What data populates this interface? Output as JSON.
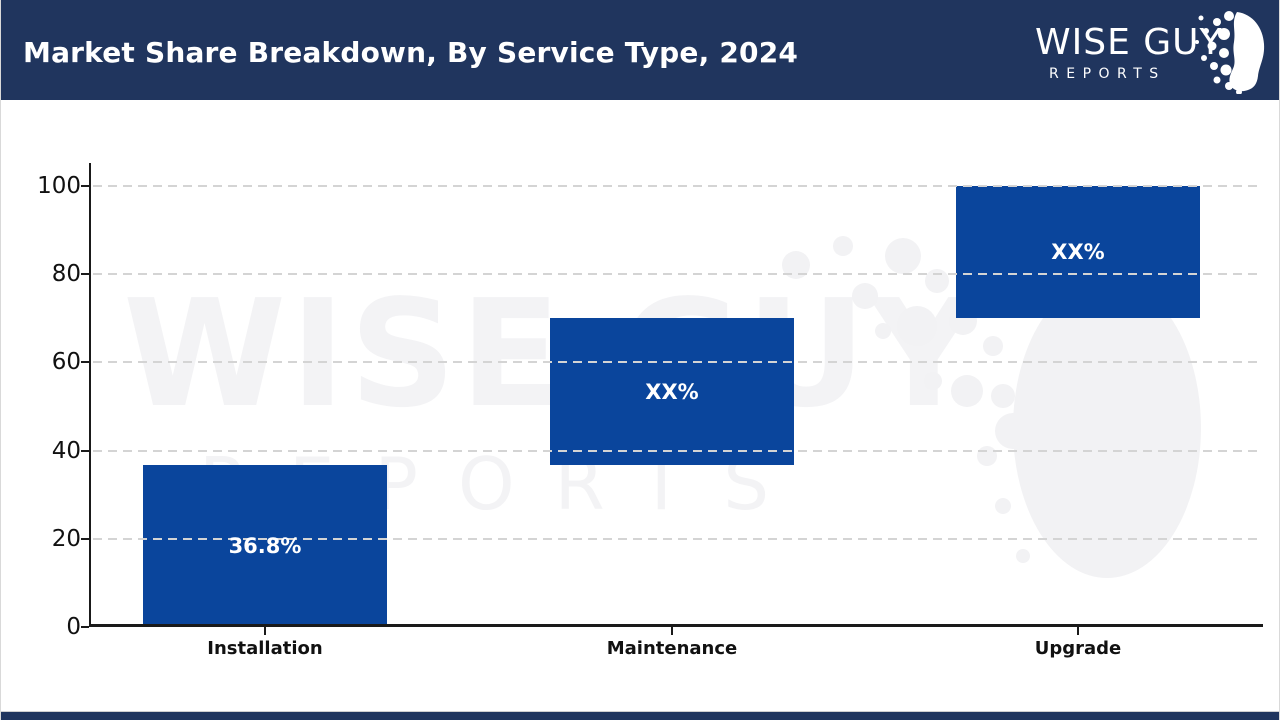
{
  "header": {
    "title": "Market Share Breakdown, By Service Type, 2024"
  },
  "logo": {
    "line1": "WISE GUY",
    "line2": "R E P O R T S"
  },
  "chart_data": {
    "type": "bar",
    "subtype": "waterfall",
    "title": "Market Share Breakdown, By Service Type, 2024",
    "categories": [
      "Installation",
      "Maintenance",
      "Upgrade"
    ],
    "segments": [
      {
        "category": "Installation",
        "start": 0,
        "end": 36.8,
        "label": "36.8%"
      },
      {
        "category": "Maintenance",
        "start": 36.8,
        "end": 70,
        "label": "XX%"
      },
      {
        "category": "Upgrade",
        "start": 70,
        "end": 100,
        "label": "XX%"
      }
    ],
    "ylim": [
      0,
      100
    ],
    "yticks": [
      0,
      20,
      40,
      60,
      80,
      100
    ],
    "xlabel": "",
    "ylabel": "",
    "grid": "horizontal-dashed",
    "legend_visible": false,
    "bar_color": "#0a459c",
    "watermark": "WISE GUY REPORTS"
  },
  "colors": {
    "header_bg": "#20355e",
    "footer_bg": "#20355e",
    "bar": "#0a459c",
    "grid": "#d4d4d4",
    "axis": "#1a1a1a",
    "title_text": "#ffffff",
    "bar_label_text": "#ffffff",
    "watermark": "#f2f2f4"
  }
}
